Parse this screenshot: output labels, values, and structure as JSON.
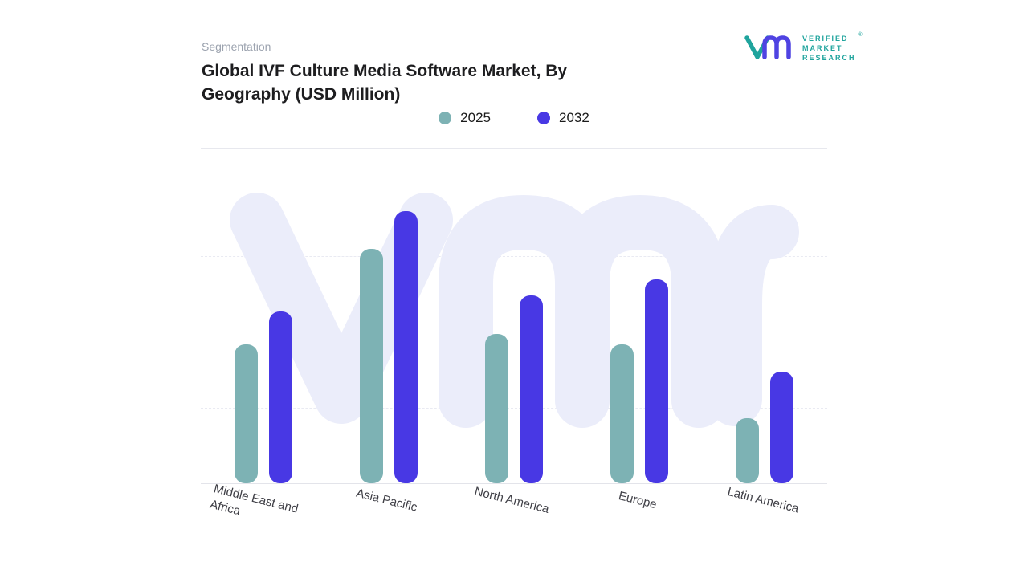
{
  "header": {
    "section_label": "Segmentation",
    "title": "Global IVF Culture Media Software Market, By Geography (USD Million)"
  },
  "logo": {
    "mark_icon": "vmr-monogram",
    "brand_lines": [
      "VERIFIED",
      "MARKET",
      "RESEARCH"
    ],
    "registered_mark": "®",
    "teal": "#1fa49d",
    "purple": "#4f43e2"
  },
  "colors": {
    "series_2025": "#7db2b4",
    "series_2032": "#4838e4",
    "watermark": "#ebedfa",
    "grid": "#e9eaf2",
    "axis": "#e3e4ea",
    "muted_text": "#9ca3af"
  },
  "chart_data": {
    "type": "bar",
    "title": "Global IVF Culture Media Software Market, By Geography (USD Million)",
    "categories": [
      "Middle East and Africa",
      "Asia Pacific",
      "North America",
      "Europe",
      "Latin America"
    ],
    "series": [
      {
        "name": "2025",
        "color": "#7db2b4",
        "values": [
          51,
          86,
          55,
          51,
          24
        ]
      },
      {
        "name": "2032",
        "color": "#4838e4",
        "values": [
          63,
          100,
          69,
          75,
          41
        ]
      }
    ],
    "xlabel": "",
    "ylabel": "",
    "ylim": [
      0,
      100
    ],
    "value_axis": "unlabeled (values are relative, % of tallest bar)",
    "grid": "dashed horizontal",
    "legend_position": "top-center",
    "bar_style": "rounded pill ends",
    "watermark_text": "vmr"
  }
}
